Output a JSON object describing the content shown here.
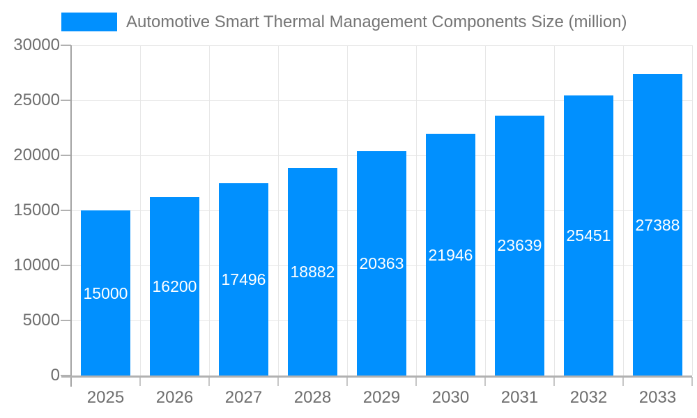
{
  "legend": {
    "label": "Automotive Smart Thermal Management Components Size (million)"
  },
  "chart_data": {
    "type": "bar",
    "title": "Automotive Smart Thermal Management Components Size (million)",
    "xlabel": "",
    "ylabel": "",
    "categories": [
      "2025",
      "2026",
      "2027",
      "2028",
      "2029",
      "2030",
      "2031",
      "2032",
      "2033"
    ],
    "values": [
      15000,
      16200,
      17496,
      18882,
      20363,
      21946,
      23639,
      25451,
      27388
    ],
    "bar_value_labels": [
      "15000",
      "16200",
      "17496",
      "18882",
      "20363",
      "21946",
      "23639",
      "25451",
      "27388"
    ],
    "ylim": [
      0,
      30000
    ],
    "yticks": [
      0,
      5000,
      10000,
      15000,
      20000,
      25000,
      30000
    ],
    "ytick_labels": [
      "0",
      "5000",
      "10000",
      "15000",
      "20000",
      "25000",
      "30000"
    ],
    "grid": true,
    "legend_position": "top-left"
  },
  "colors": {
    "bar": "#0190fe",
    "bar_label_text": "#ffffff",
    "grid": "#e6e6e6",
    "axis_line": "#b1b1b1",
    "y_axis_line": "#a3a3a3",
    "tick": "#c6c6c6",
    "axis_text": "#6e6e6e",
    "title_text": "#757575",
    "background": "#ffffff"
  }
}
